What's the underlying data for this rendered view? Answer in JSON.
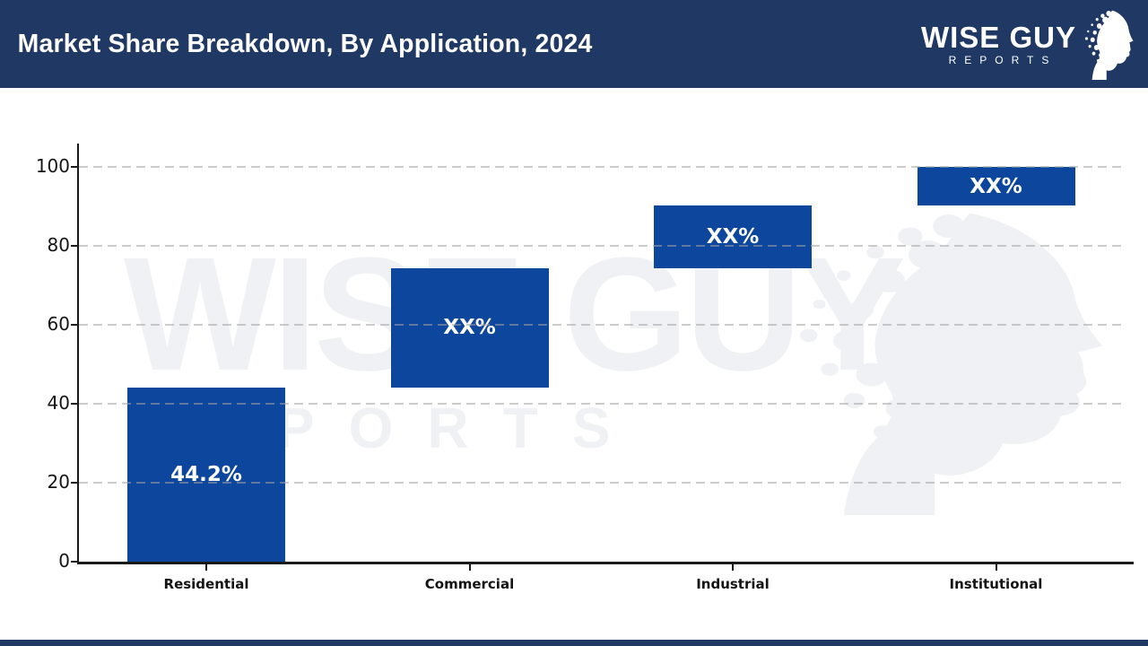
{
  "header": {
    "title": "Market Share Breakdown, By Application, 2024",
    "background_color": "#1f3864"
  },
  "logo": {
    "line1": "WISE GUY",
    "line2": "REPORTS",
    "icon": "head-profile-with-dots-icon"
  },
  "watermark": {
    "line1": "WISE GUY",
    "line2": "REPORTS",
    "color": "#f0f1f4"
  },
  "chart_data": {
    "type": "bar",
    "subtype": "waterfall",
    "title": "Market Share Breakdown, By Application, 2024",
    "categories": [
      "Residential",
      "Commercial",
      "Industrial",
      "Institutional"
    ],
    "bars": [
      {
        "label": "Residential",
        "start": 0,
        "end": 44.2,
        "value_label": "44.2%"
      },
      {
        "label": "Commercial",
        "start": 44.2,
        "end": 74.3,
        "value_label": "XX%"
      },
      {
        "label": "Industrial",
        "start": 74.3,
        "end": 90.2,
        "value_label": "XX%"
      },
      {
        "label": "Institutional",
        "start": 90.2,
        "end": 100,
        "value_label": "XX%"
      }
    ],
    "yticks": [
      0,
      20,
      40,
      60,
      80,
      100
    ],
    "ylim": [
      0,
      105
    ],
    "xlabel": "",
    "ylabel": "",
    "grid": "horizontal-dashed",
    "legend": "none",
    "bar_color": "#0c469d",
    "bar_label_color": "#ffffff",
    "axis_color": "#1a1a1a",
    "gridline_color": "#d9d9d9"
  }
}
